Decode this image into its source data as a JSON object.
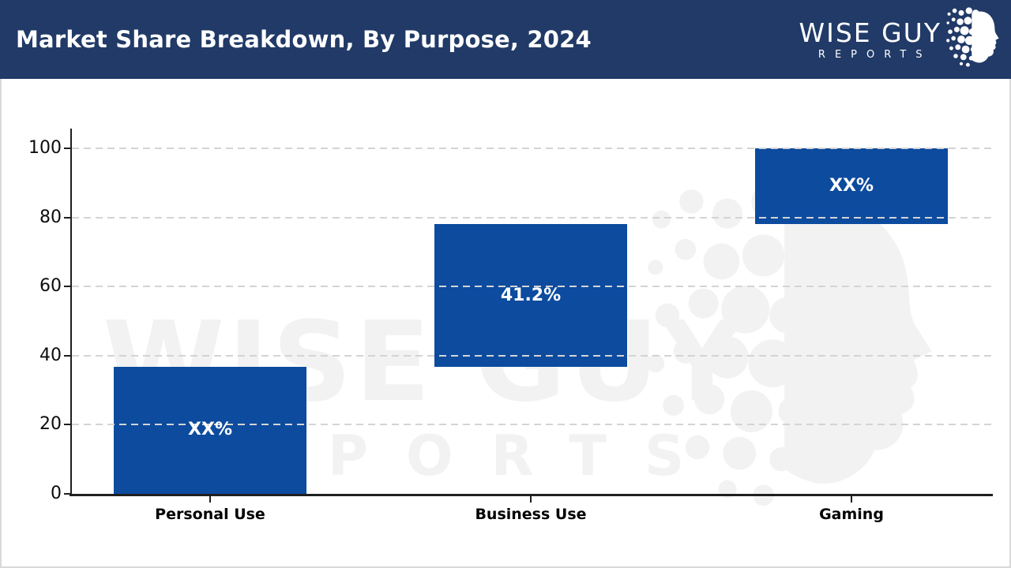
{
  "header": {
    "title": "Market Share Breakdown, By Purpose, 2024",
    "brand": {
      "line1": "WISE GUY",
      "line2": "REPORTS",
      "face_icon": "dotted-head-profile"
    }
  },
  "watermark": {
    "line1": "WISE GUY",
    "line2": "REPORTS"
  },
  "colors": {
    "header_bg": "#213A67",
    "bar_fill": "#0C4B9E",
    "bar_label_text": "#FFFFFF",
    "axis": "#1F1F1F",
    "gridline": "#D4D4D4",
    "watermark": "#F2F2F2",
    "frame_border": "#D9D9D9"
  },
  "chart_data": {
    "type": "bar",
    "subtype": "waterfall",
    "title": "Market Share Breakdown, By Purpose, 2024",
    "categories": [
      "Personal Use",
      "Business Use",
      "Gaming"
    ],
    "segments": [
      {
        "category": "Personal Use",
        "start": 0,
        "end": 36.8,
        "label": "XX%",
        "value_masked": true,
        "value_estimate": 36.8
      },
      {
        "category": "Business Use",
        "start": 36.8,
        "end": 78.0,
        "label": "41.2%",
        "value_masked": false,
        "value": 41.2
      },
      {
        "category": "Gaming",
        "start": 78.0,
        "end": 100.0,
        "label": "XX%",
        "value_masked": true,
        "value_estimate": 22.0
      }
    ],
    "yticks": [
      0,
      20,
      40,
      60,
      80,
      100
    ],
    "ylim": [
      0,
      106
    ],
    "xlabel": "",
    "ylabel": "",
    "grid": "dashed-horizontal-over-bars",
    "legend": "none"
  }
}
